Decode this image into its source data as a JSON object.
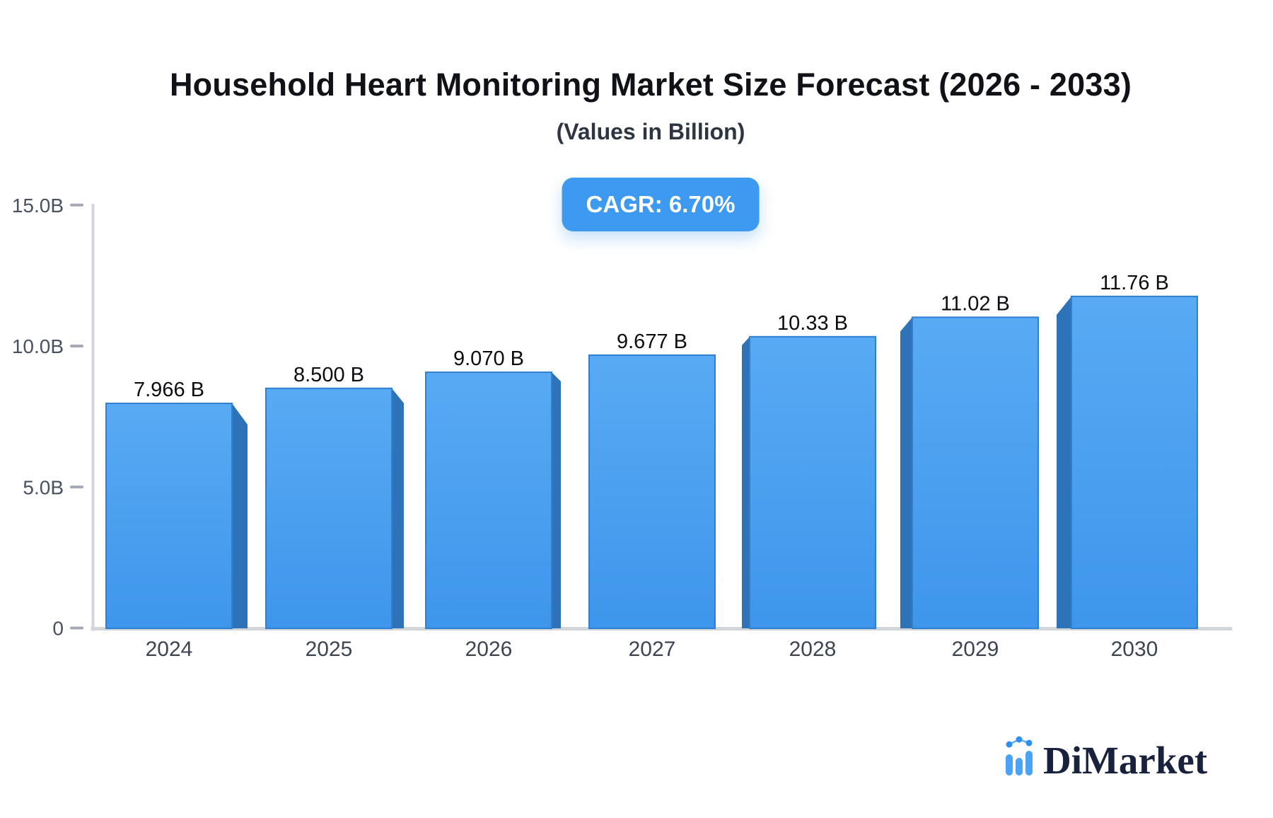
{
  "header": {
    "title": "Household Heart Monitoring Market Size Forecast (2026 - 2033)",
    "subtitle": "(Values in Billion)",
    "cagr_badge": "CAGR: 6.70%"
  },
  "chart_data": {
    "type": "bar",
    "title": "Household Heart Monitoring Market Size Forecast (2026 - 2033)",
    "subtitle": "(Values in Billion)",
    "annotation": "CAGR: 6.70%",
    "categories": [
      "2024",
      "2025",
      "2026",
      "2027",
      "2028",
      "2029",
      "2030"
    ],
    "values": [
      7.966,
      8.5,
      9.07,
      9.677,
      10.33,
      11.02,
      11.76
    ],
    "value_labels": [
      "7.966 B",
      "8.500 B",
      "9.070 B",
      "9.677 B",
      "10.33 B",
      "11.02 B",
      "11.76 B"
    ],
    "y_axis": {
      "min": 0,
      "max": 15,
      "ticks": [
        {
          "label": "0",
          "value": 0
        },
        {
          "label": "5.0B",
          "value": 5
        },
        {
          "label": "10.0B",
          "value": 10
        },
        {
          "label": "15.0B",
          "value": 15
        }
      ]
    },
    "grid": false,
    "legend": false,
    "colors": {
      "bar_top": "#58aaf3",
      "bar_bottom": "#3e96ec",
      "bar_border": "#2f80d0",
      "bar_side": "#2e73b8",
      "badge": "#3d9af0",
      "axis_line": "#d2d5db",
      "tick": "#a4a9b5",
      "tick_label": "#4a5161",
      "x_label": "#3d4452",
      "value_label": "#0c0d10"
    }
  },
  "branding": {
    "logo_text": "DiMarket"
  }
}
